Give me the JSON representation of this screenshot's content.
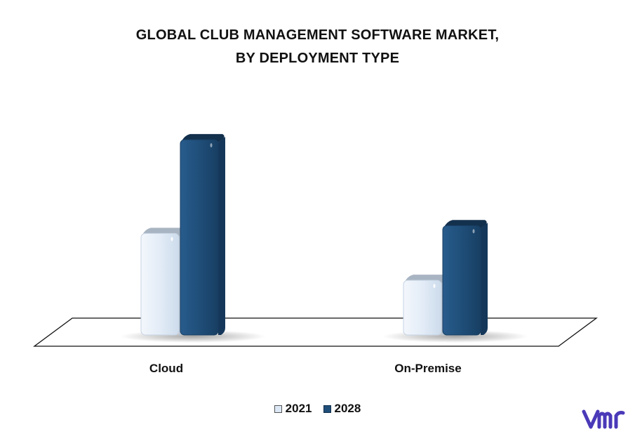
{
  "chart_data": {
    "type": "bar",
    "title_lines": [
      "GLOBAL CLUB MANAGEMENT SOFTWARE MARKET,",
      "BY DEPLOYMENT TYPE"
    ],
    "categories": [
      "Cloud",
      "On-Premise"
    ],
    "series": [
      {
        "name": "2021",
        "values": [
          52,
          28
        ]
      },
      {
        "name": "2028",
        "values": [
          100,
          56
        ]
      }
    ],
    "ylim": [
      0,
      110
    ],
    "legend_position": "bottom-center",
    "grid": false
  },
  "colors": {
    "series_2021": "#dce8f5",
    "series_2021_top": "#a8b4c2",
    "series_2028": "#1f4e79",
    "series_2028_top": "#13304d",
    "logo": "#4a3ab8"
  },
  "logo": {
    "name": "vmr-logo-icon"
  }
}
